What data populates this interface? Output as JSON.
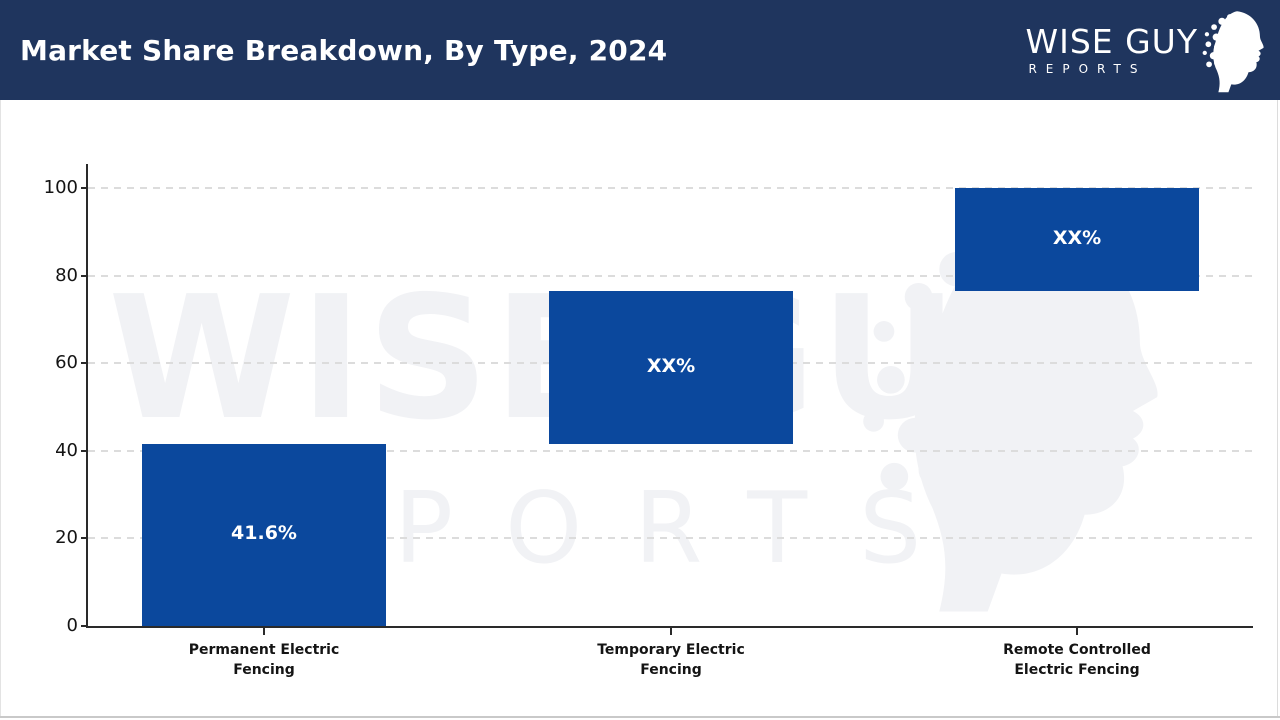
{
  "header": {
    "title": "Market Share Breakdown, By Type, 2024",
    "logo": {
      "wordmark": "WISE GUY",
      "subtext": "REPORTS"
    }
  },
  "watermark": {
    "row1": "WISE GUY",
    "row2": "REPORTS"
  },
  "chart_data": {
    "type": "bar",
    "variant": "waterfall",
    "title": "Market Share Breakdown, By Type, 2024",
    "categories": [
      "Permanent Electric Fencing",
      "Temporary Electric Fencing",
      "Remote Controlled Electric Fencing"
    ],
    "categories_wrapped": [
      [
        "Permanent Electric",
        "Fencing"
      ],
      [
        "Temporary Electric",
        "Fencing"
      ],
      [
        "Remote Controlled",
        "Electric Fencing"
      ]
    ],
    "segments": [
      {
        "category": "Permanent Electric Fencing",
        "start": 0,
        "end": 41.6,
        "value": 41.6,
        "label": "41.6%"
      },
      {
        "category": "Temporary Electric Fencing",
        "start": 41.6,
        "end": 76.4,
        "value": 34.8,
        "label": "XX%"
      },
      {
        "category": "Remote Controlled Electric Fencing",
        "start": 76.4,
        "end": 100,
        "value": 23.6,
        "label": "XX%"
      }
    ],
    "ylim": [
      0,
      100
    ],
    "yticks": [
      "0",
      "20",
      "40",
      "60",
      "80",
      "100"
    ],
    "xlabel": "",
    "ylabel": "",
    "grid": "horizontal-dashed",
    "legend": false,
    "colors": {
      "bar": "#0b489d",
      "bar_label": "#ffffff",
      "header_bg": "#1f355e",
      "axis": "#2a2a2a",
      "gridline": "#dcdcdc",
      "tick_text": "#141414",
      "watermark": "#f1f2f5"
    }
  }
}
